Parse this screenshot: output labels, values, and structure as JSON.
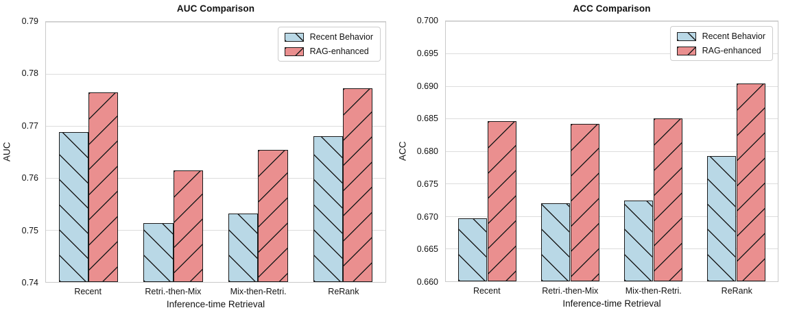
{
  "figure": {
    "background": "#ffffff",
    "text_color": "#111111",
    "grid_color": "#dcdcdc",
    "spine_color": "#c9c9c9",
    "bar_edge_color": "#1a1a1a"
  },
  "chart_data": [
    {
      "type": "bar",
      "title": "AUC Comparison",
      "xlabel": "Inference-time Retrieval",
      "ylabel": "AUC",
      "categories": [
        "Recent",
        "Retri.-then-Mix",
        "Mix-then-Retri.",
        "ReRank"
      ],
      "series": [
        {
          "name": "Recent Behavior",
          "color": "#B9D8E6",
          "hatch": "\\",
          "values": [
            0.7688,
            0.7513,
            0.7531,
            0.768
          ]
        },
        {
          "name": "RAG-enhanced",
          "color": "#EA8F8F",
          "hatch": "/",
          "values": [
            0.7765,
            0.7614,
            0.7654,
            0.7772
          ]
        }
      ],
      "ylim": [
        0.74,
        0.79
      ],
      "yticks": [
        "0.74",
        "0.75",
        "0.76",
        "0.77",
        "0.78",
        "0.79"
      ],
      "grid": true,
      "legend_position": "upper right"
    },
    {
      "type": "bar",
      "title": "ACC Comparison",
      "xlabel": "Inference-time Retrieval",
      "ylabel": "ACC",
      "categories": [
        "Recent",
        "Retri.-then-Mix",
        "Mix-then-Retri.",
        "ReRank"
      ],
      "series": [
        {
          "name": "Recent Behavior",
          "color": "#B9D8E6",
          "hatch": "\\",
          "values": [
            0.6697,
            0.672,
            0.6724,
            0.6793
          ]
        },
        {
          "name": "RAG-enhanced",
          "color": "#EA8F8F",
          "hatch": "/",
          "values": [
            0.6846,
            0.6842,
            0.6851,
            0.6904
          ]
        }
      ],
      "ylim": [
        0.66,
        0.7
      ],
      "yticks": [
        "0.660",
        "0.665",
        "0.670",
        "0.675",
        "0.680",
        "0.685",
        "0.690",
        "0.695",
        "0.700"
      ],
      "grid": true,
      "legend_position": "upper right"
    }
  ]
}
